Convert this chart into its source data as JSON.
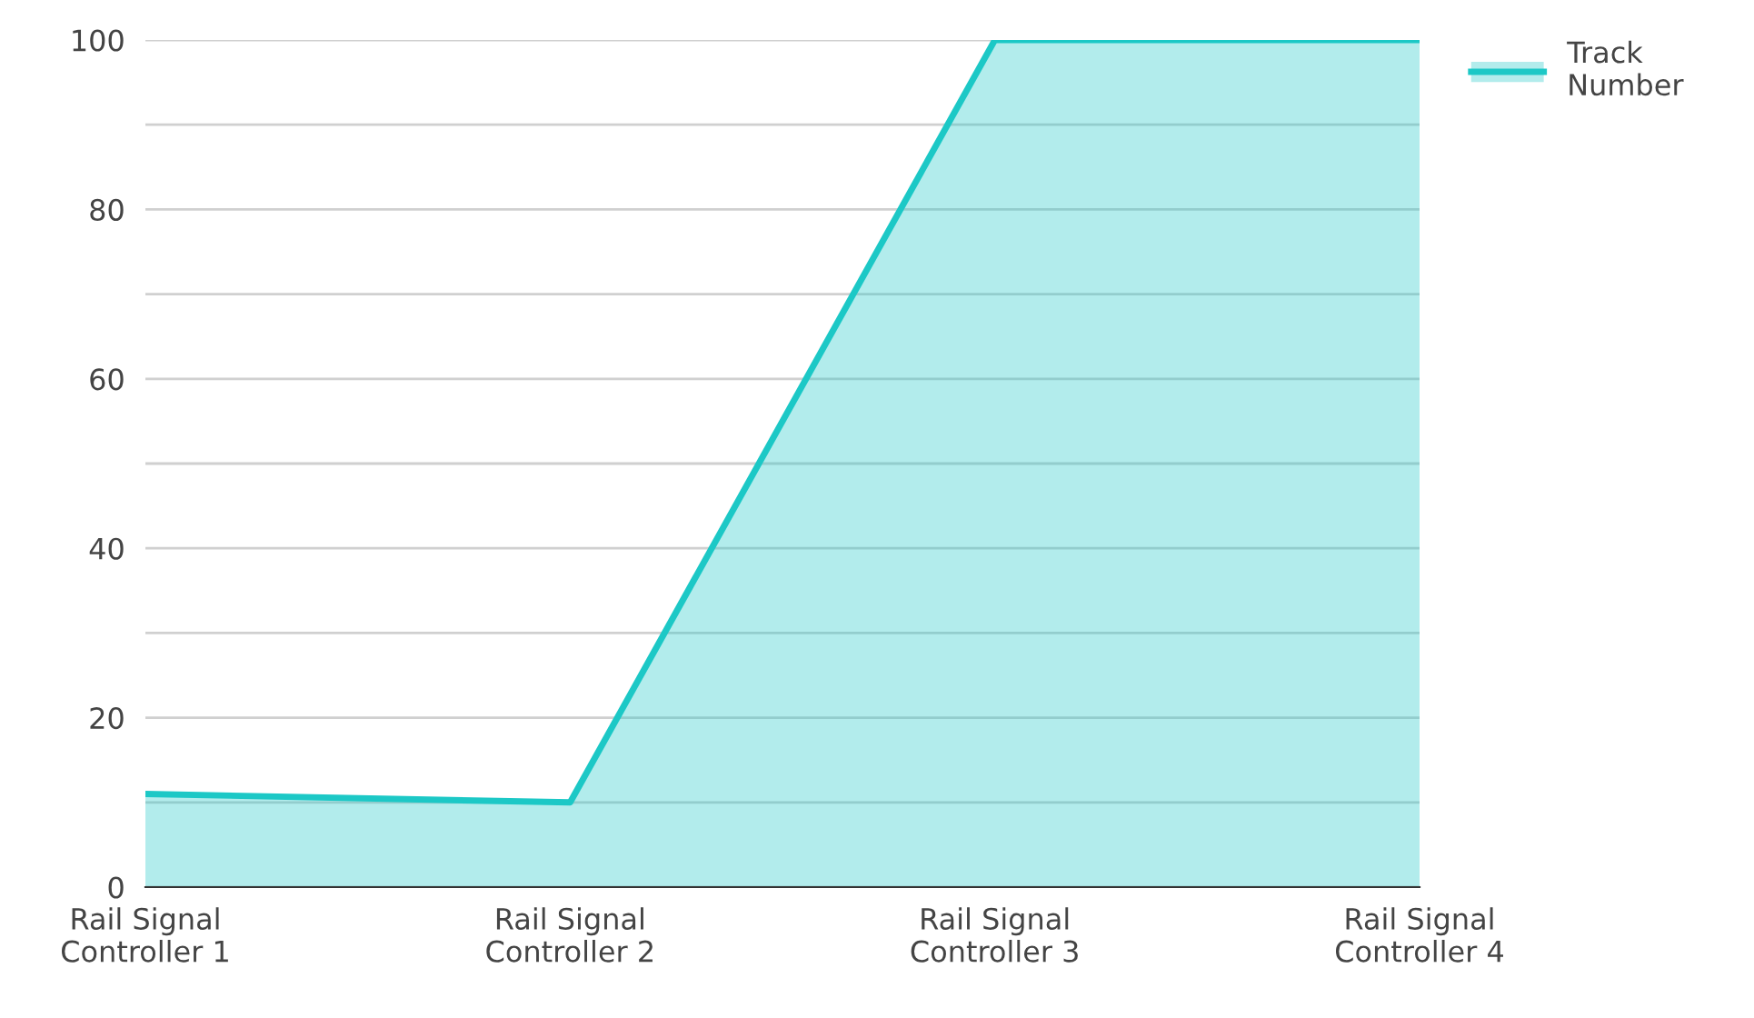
{
  "chart_data": {
    "type": "area",
    "categories": [
      "Rail Signal\nController 1",
      "Rail Signal\nController 2",
      "Rail Signal\nController 3",
      "Rail Signal\nController 4"
    ],
    "series": [
      {
        "name": "Track\nNumber",
        "color": "#1cc8c6",
        "values": [
          11,
          10,
          100,
          100
        ]
      }
    ],
    "ylim": [
      0,
      100
    ],
    "yticks": [
      0,
      {
        "value": 10,
        "label": null
      },
      20,
      {
        "value": 30,
        "label": null
      },
      40,
      {
        "value": 50,
        "label": null
      },
      60,
      {
        "value": 70,
        "label": null
      },
      80,
      {
        "value": 90,
        "label": null
      },
      100
    ],
    "grid": "y",
    "legend": "top right"
  }
}
